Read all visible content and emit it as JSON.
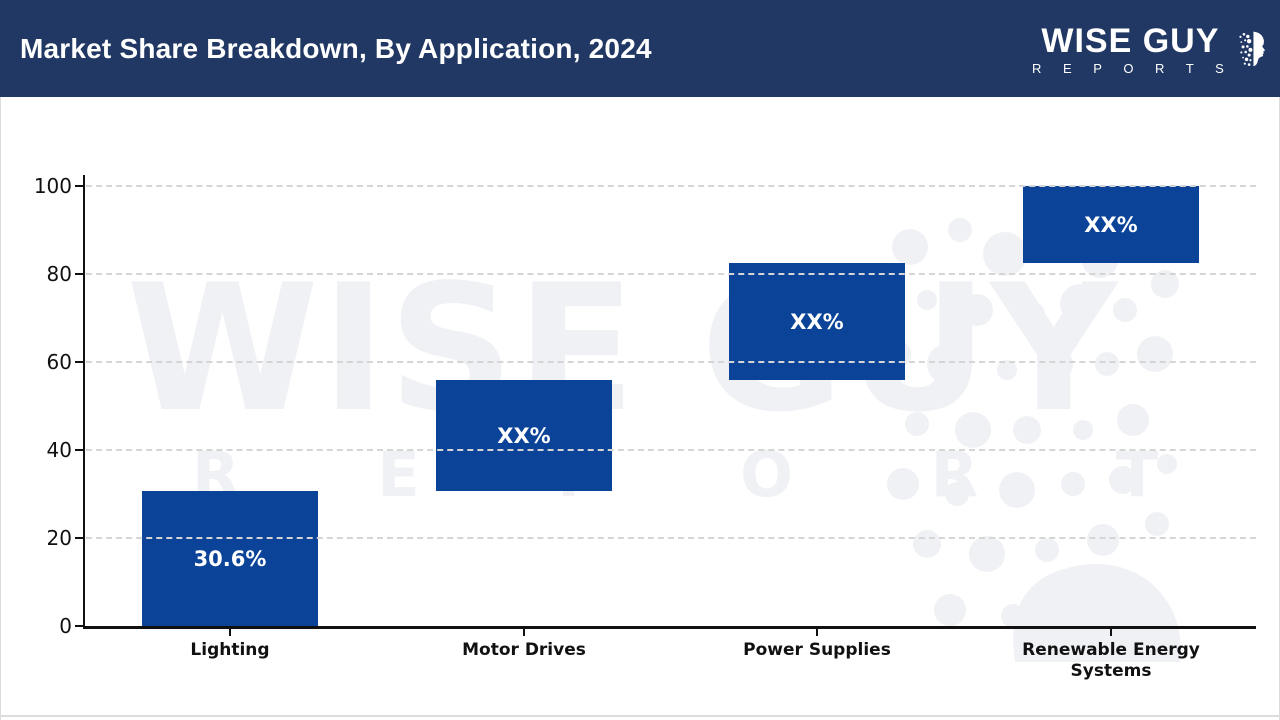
{
  "header": {
    "title": "Market Share Breakdown, By Application, 2024",
    "background_color": "#223864",
    "logo": {
      "name": "WISE GUY",
      "sub": "R E P O R T S"
    }
  },
  "watermark": {
    "line1": "WISE GUY",
    "line2": "R E P O R T S"
  },
  "chart_data": {
    "type": "bar",
    "subtype": "floating-segment-waterfall",
    "title": "Market Share Breakdown, By Application, 2024",
    "categories": [
      "Lighting",
      "Motor Drives",
      "Power Supplies",
      "Renewable Energy Systems"
    ],
    "bars": [
      {
        "category": "Lighting",
        "start": 0,
        "end": 30.6,
        "label": "30.6%"
      },
      {
        "category": "Motor Drives",
        "start": 30.6,
        "end": 55.9,
        "label": "XX%"
      },
      {
        "category": "Power Supplies",
        "start": 55.9,
        "end": 82.4,
        "label": "XX%"
      },
      {
        "category": "Renewable Energy Systems",
        "start": 82.4,
        "end": 100,
        "label": "XX%"
      }
    ],
    "xlabel": "",
    "ylabel": "",
    "ylim": [
      0,
      100
    ],
    "y_ticks": [
      0,
      20,
      40,
      60,
      80,
      100
    ],
    "grid": "horizontal-dashed",
    "legend_position": "none",
    "bar_color": "#0b4398",
    "bar_label_color": "#ffffff",
    "gridline_color": "#d5d5d5",
    "axis_color": "#111111"
  }
}
